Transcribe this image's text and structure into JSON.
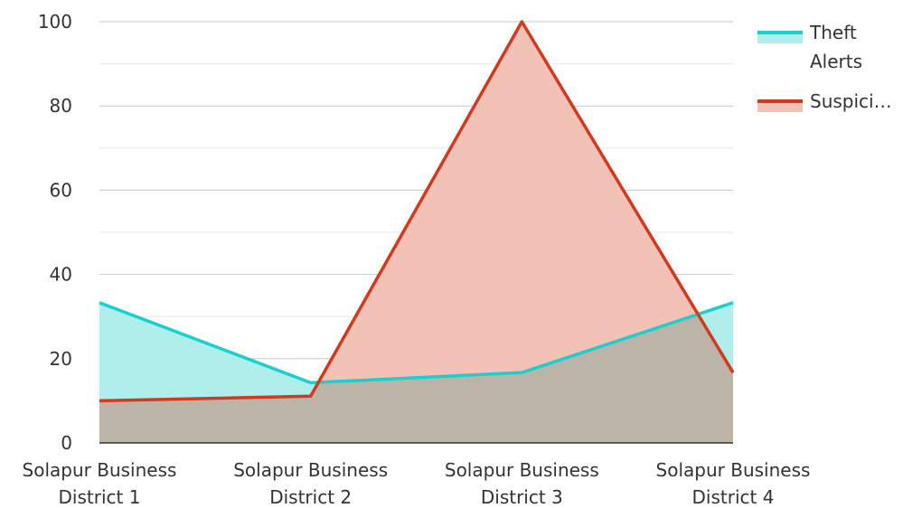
{
  "chart_data": {
    "type": "area",
    "categories": [
      "Solapur Business District 1",
      "Solapur Business District 2",
      "Solapur Business District 3",
      "Solapur Business District 4"
    ],
    "category_lines": [
      [
        "Solapur Business",
        "District 1"
      ],
      [
        "Solapur Business",
        "District 2"
      ],
      [
        "Solapur Business",
        "District 3"
      ],
      [
        "Solapur Business",
        "District 4"
      ]
    ],
    "series": [
      {
        "name": "Theft Alerts",
        "legend_lines": [
          "Theft",
          "Alerts"
        ],
        "values": [
          33.3,
          14.3,
          16.7,
          33.3
        ],
        "color": "#1ccfcf",
        "fill": "#b0eeec"
      },
      {
        "name": "Suspici…",
        "legend_lines": [
          "Suspici…"
        ],
        "values": [
          10,
          11.1,
          100,
          16.7
        ],
        "color": "#d2391e",
        "fill": "#f2c2b7"
      }
    ],
    "overlap_fill": "#bdb4a8",
    "ylim": [
      0,
      100
    ],
    "yticks": [
      "0",
      "20",
      "40",
      "60",
      "80",
      "100"
    ],
    "grid": true,
    "legend_position": "top-right",
    "title": "",
    "xlabel": "",
    "ylabel": ""
  }
}
